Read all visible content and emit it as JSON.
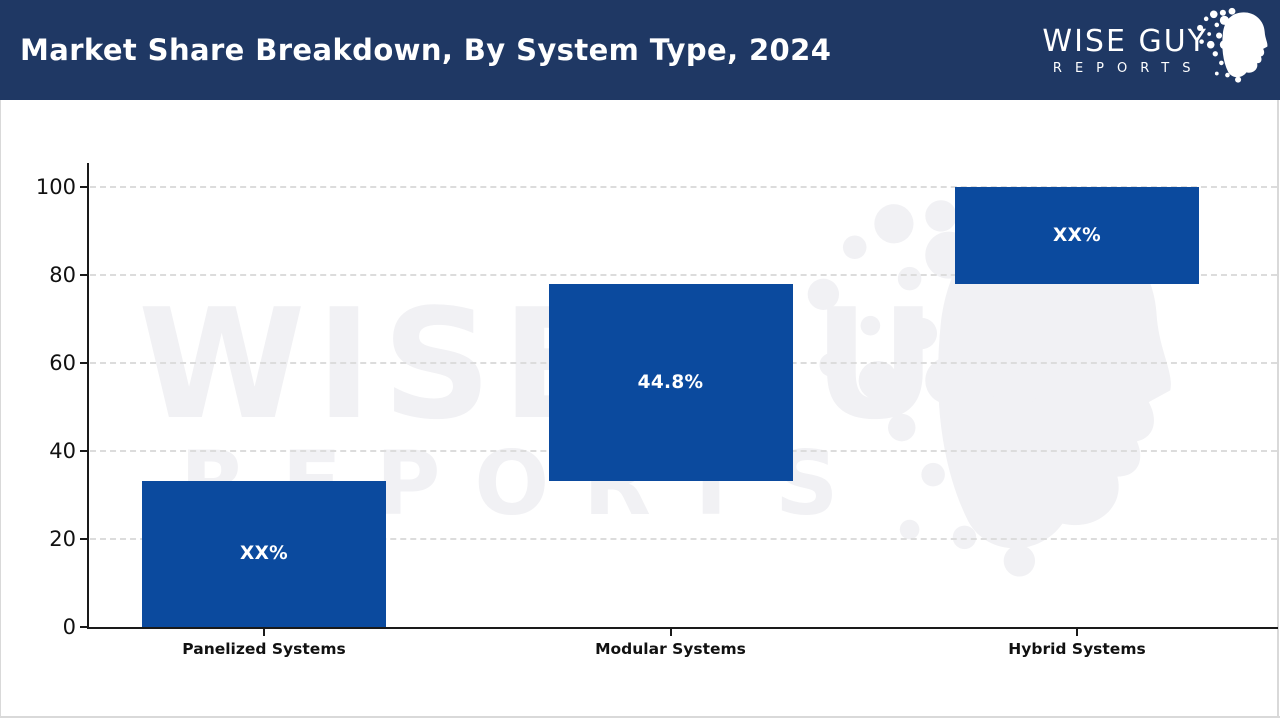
{
  "header": {
    "title": "Market Share Breakdown, By System Type, 2024",
    "logo": {
      "line1": "WISE GUY",
      "line2": "REPORTS",
      "face_icon": "face-profile-dots-icon"
    }
  },
  "watermark": {
    "line1": "WISE GUY",
    "line2": "REPORTS"
  },
  "colors": {
    "header_bg": "#1f3864",
    "title_text": "#ffffff",
    "bar": "#0b4a9e",
    "bar_label_text": "#ffffff",
    "axis": "#1a1a1a",
    "grid": "#dcdcdc",
    "tick_text": "#111111",
    "watermark": "#f1f1f4",
    "page_border": "#d9d9d9"
  },
  "chart_data": {
    "type": "bar",
    "subtype": "floating-segment-waterfall",
    "title": "Market Share Breakdown, By System Type, 2024",
    "categories": [
      "Panelized Systems",
      "Modular Systems",
      "Hybrid Systems"
    ],
    "segments": [
      {
        "category": "Panelized Systems",
        "start": 0,
        "end": 33.2,
        "label": "XX%"
      },
      {
        "category": "Modular Systems",
        "start": 33.2,
        "end": 78,
        "label": "44.8%"
      },
      {
        "category": "Hybrid Systems",
        "start": 78,
        "end": 100,
        "label": "XX%"
      }
    ],
    "yticks": [
      0,
      20,
      40,
      60,
      80,
      100
    ],
    "ylim": [
      0,
      105.5
    ],
    "xlabel": "",
    "ylabel": "",
    "grid": "dashed-horizontal",
    "legend": "none",
    "bar_color": "#0b4a9e"
  }
}
